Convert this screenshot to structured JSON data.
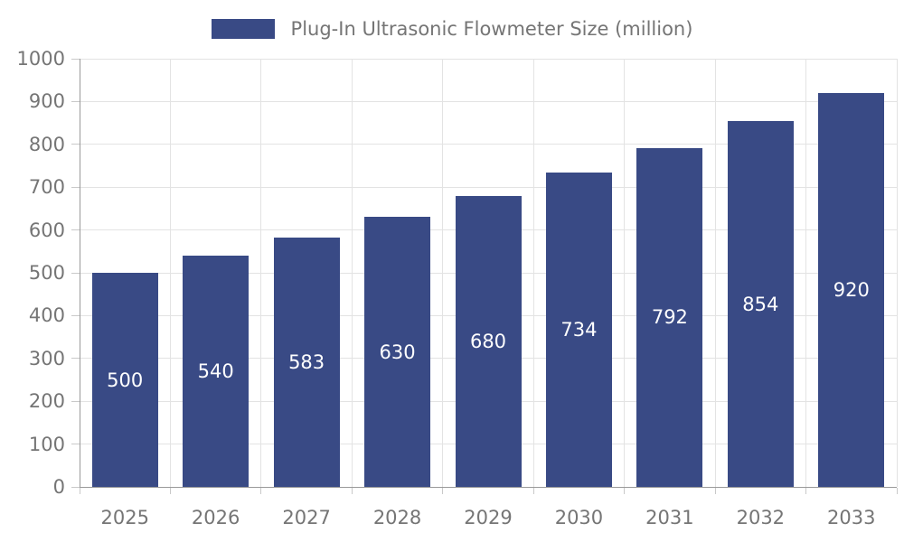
{
  "legend": {
    "label": "Plug-In Ultrasonic Flowmeter Size (million)"
  },
  "chart_data": {
    "type": "bar",
    "title": "",
    "xlabel": "",
    "ylabel": "",
    "categories": [
      "2025",
      "2026",
      "2027",
      "2028",
      "2029",
      "2030",
      "2031",
      "2032",
      "2033"
    ],
    "series": [
      {
        "name": "Plug-In Ultrasonic Flowmeter Size (million)",
        "values": [
          500,
          540,
          583,
          630,
          680,
          734,
          792,
          854,
          920
        ]
      }
    ],
    "ylim": [
      0,
      1000
    ],
    "ytick_step": 100,
    "y_tick_labels": [
      "0",
      "100",
      "200",
      "300",
      "400",
      "500",
      "600",
      "700",
      "800",
      "900",
      "1000"
    ],
    "grid": true,
    "legend_position": "top",
    "value_labels_inside_bars": true,
    "colors": {
      "bar": "#394A85",
      "bar_value_text": "#ffffff",
      "axis_text": "#757575",
      "legend_text": "#757575",
      "grid_line": "#e3e3e3",
      "axis_line": "#9a9a9a",
      "tick_mark": "#c9c9c9",
      "background": "#ffffff"
    }
  }
}
